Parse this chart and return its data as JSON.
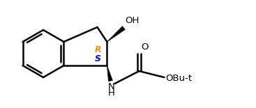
{
  "bg_color": "#ffffff",
  "line_color": "#000000",
  "lw": 1.8,
  "R_color": "#ff8c00",
  "S_color": "#0000cd",
  "figsize": [
    3.67,
    1.55
  ],
  "dpi": 100,
  "label_OH": "OH",
  "label_O": "O",
  "label_NH": "N",
  "label_H": "H",
  "label_OBut": "OBu-t",
  "label_R": "R",
  "label_S": "S",
  "fs": 9.5
}
